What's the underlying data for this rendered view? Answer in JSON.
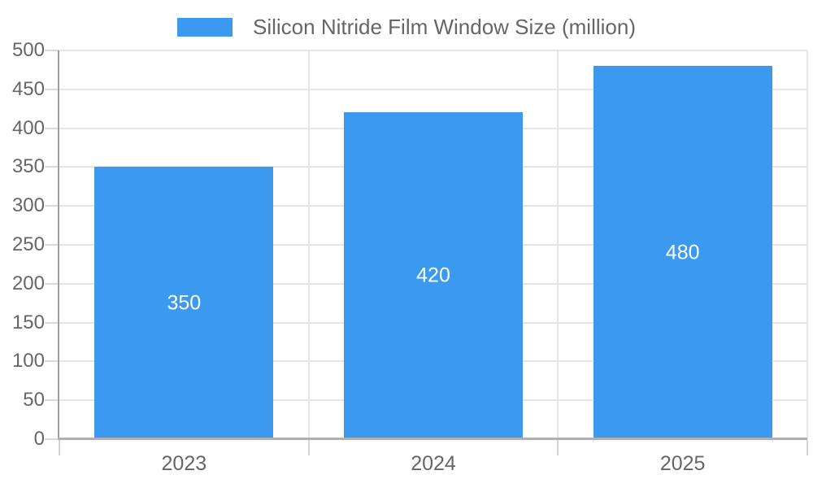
{
  "legend": {
    "label": "Silicon Nitride Film Window Size (million)"
  },
  "chart_data": {
    "type": "bar",
    "title": "",
    "xlabel": "",
    "ylabel": "",
    "categories": [
      "2023",
      "2024",
      "2025"
    ],
    "series": [
      {
        "name": "Silicon Nitride Film Window Size (million)",
        "values": [
          350,
          420,
          480
        ]
      }
    ],
    "data_labels": [
      "350",
      "420",
      "480"
    ],
    "ylim": [
      0,
      500
    ],
    "ytick_step": 50,
    "yticks": [
      "0",
      "50",
      "100",
      "150",
      "200",
      "250",
      "300",
      "350",
      "400",
      "450",
      "500"
    ],
    "grid": true,
    "legend_position": "top-center",
    "colors": {
      "bar": "#3B99F0",
      "axis_text": "#666666",
      "data_label": "#ffffff",
      "gridline": "#e6e6e6",
      "axis_line": "#aaaaaa",
      "background": "#ffffff"
    }
  }
}
